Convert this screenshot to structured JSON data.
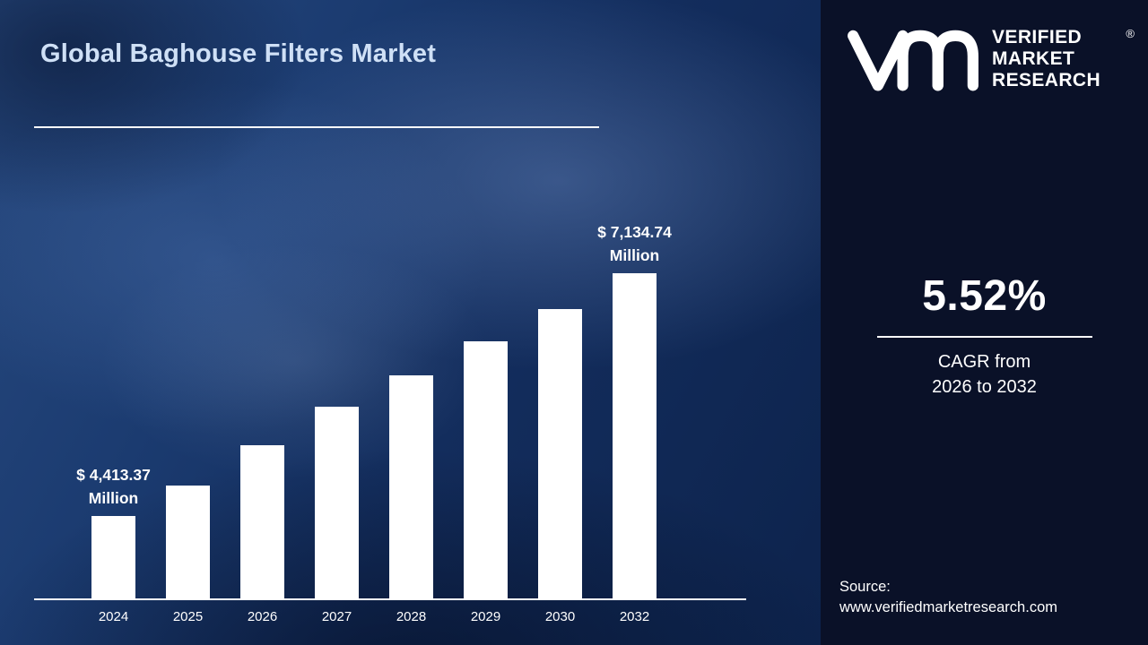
{
  "title": "Global Baghouse Filters Market",
  "logo": {
    "lines": [
      "VERIFIED",
      "MARKET",
      "RESEARCH"
    ],
    "registered": "®"
  },
  "stats": {
    "cagr_value": "5.52%",
    "cagr_label": "CAGR from",
    "cagr_range": "2026 to 2032"
  },
  "source": {
    "label": "Source:",
    "url": "www.verifiedmarketresearch.com"
  },
  "colors": {
    "right_panel_bg": "#0a1128",
    "left_panel_base": "#132d5d",
    "bar_color": "#ffffff",
    "title_color": "#cfe0f6",
    "text_color": "#ffffff"
  },
  "chart_data": {
    "type": "bar",
    "title": "Global Baghouse Filters Market",
    "xlabel": "",
    "ylabel": "",
    "categories": [
      "2024",
      "2025",
      "2026",
      "2027",
      "2028",
      "2029",
      "2030",
      "2032"
    ],
    "values": [
      4413.37,
      4750,
      5200,
      5640,
      5990,
      6370,
      6730,
      7134.74
    ],
    "value_unit": "USD Million",
    "annotations": {
      "first": {
        "line1": "$ 4,413.37",
        "line2": "Million"
      },
      "last": {
        "line1": "$ 7,134.74",
        "line2": "Million"
      }
    },
    "ylim": [
      3490,
      7200
    ],
    "grid": false,
    "legend": false,
    "bar_color": "#ffffff"
  }
}
